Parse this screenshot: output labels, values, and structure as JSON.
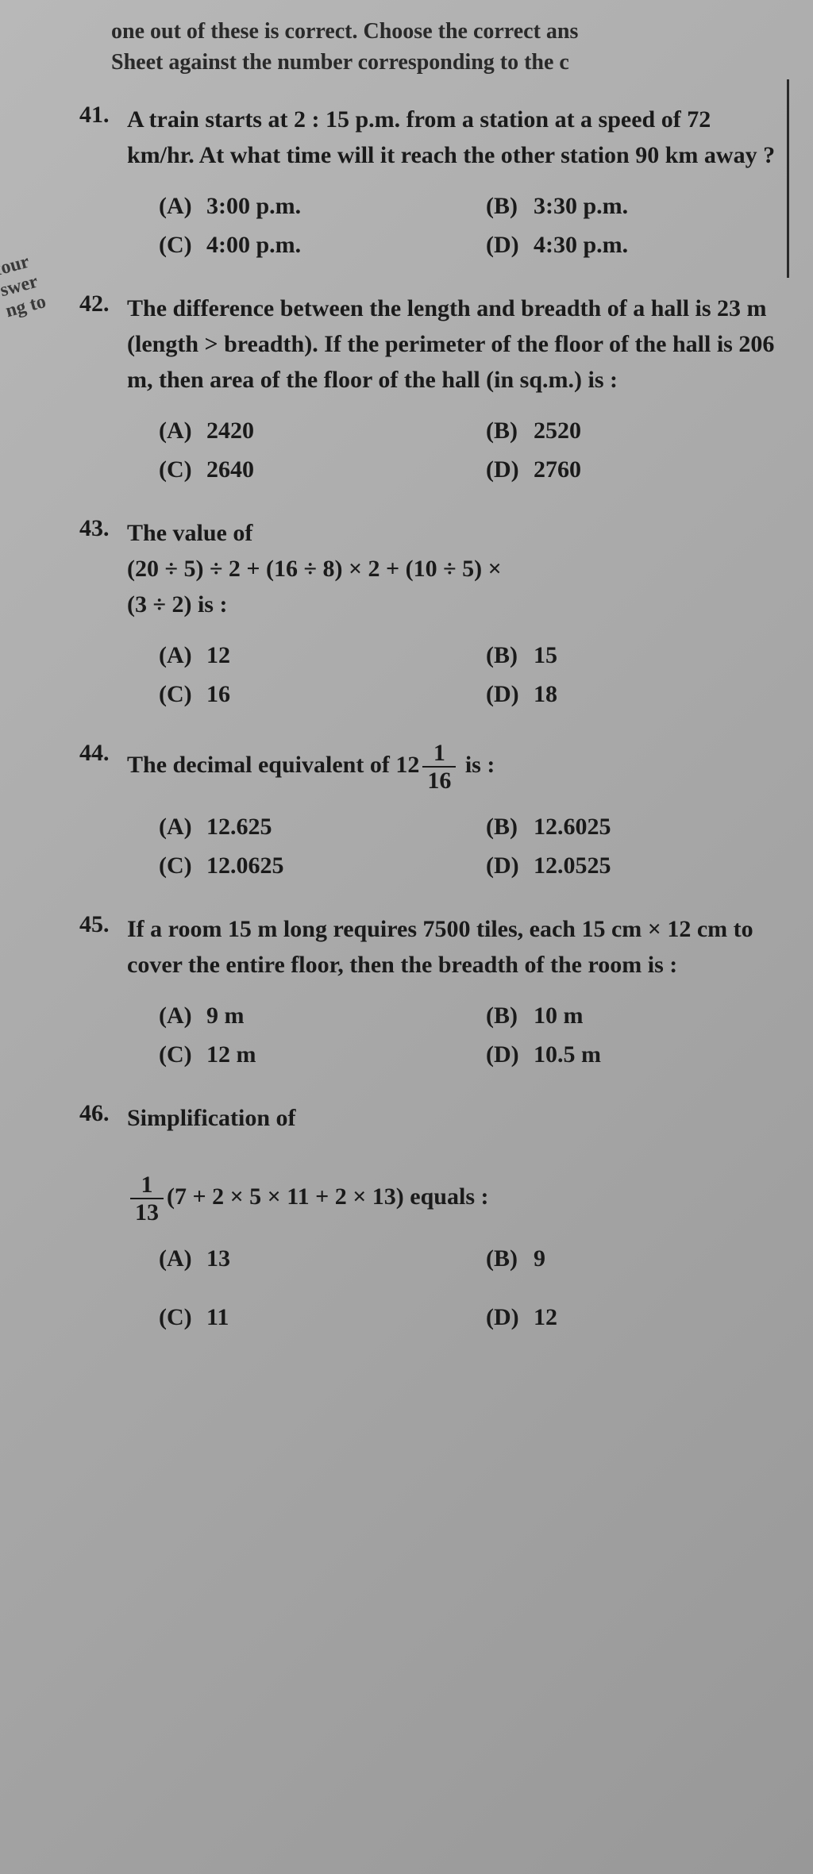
{
  "intro": {
    "line1": "one out of these is correct. Choose the correct ans",
    "line2": "Sheet against the number corresponding to the c"
  },
  "side_labels": {
    "four": "four",
    "swe": "swer",
    "ngto": "ng to"
  },
  "questions": [
    {
      "number": "41.",
      "text": "A train starts at 2 : 15 p.m. from a station at a speed of 72 km/hr. At what time will it reach the other station 90 km away ?",
      "options": {
        "A": "3:00 p.m.",
        "B": "3:30 p.m.",
        "C": "4:00 p.m.",
        "D": "4:30 p.m."
      }
    },
    {
      "number": "42.",
      "text": "The difference between the length and breadth of a hall is 23 m (length > breadth). If the perimeter of the floor of the hall is 206 m, then area of the floor of the hall (in sq.m.) is :",
      "options": {
        "A": "2420",
        "B": "2520",
        "C": "2640",
        "D": "2760"
      }
    },
    {
      "number": "43.",
      "text": "The value of",
      "expression_line1": "(20 ÷ 5) ÷ 2 + (16 ÷ 8) × 2 + (10 ÷ 5) ×",
      "expression_line2": "(3 ÷ 2) is :",
      "options": {
        "A": "12",
        "B": "15",
        "C": "16",
        "D": "18"
      }
    },
    {
      "number": "44.",
      "text_prefix": "The decimal equivalent of 12",
      "frac_num": "1",
      "frac_den": "16",
      "text_suffix": " is :",
      "options": {
        "A": "12.625",
        "B": "12.6025",
        "C": "12.0625",
        "D": "12.0525"
      }
    },
    {
      "number": "45.",
      "text": "If a room 15 m long requires 7500 tiles, each 15 cm × 12 cm to cover the entire floor, then the breadth of the room is :",
      "options": {
        "A": "9 m",
        "B": "10 m",
        "C": "12 m",
        "D": "10.5 m"
      }
    },
    {
      "number": "46.",
      "text": "Simplification of",
      "expr_frac_num": "1",
      "expr_frac_den": "13",
      "expr_rest": "(7 + 2 × 5 × 11 + 2 × 13) equals :",
      "options": {
        "A": "13",
        "B": "9",
        "C": "11",
        "D": "12"
      }
    }
  ]
}
